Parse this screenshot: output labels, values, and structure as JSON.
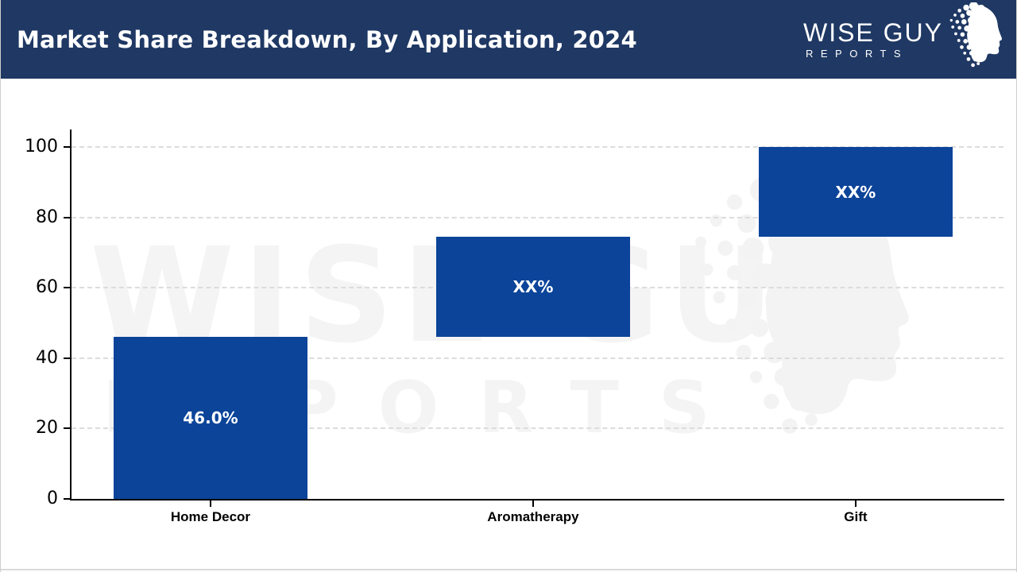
{
  "header": {
    "title": "Market Share Breakdown, By Application, 2024",
    "logo": {
      "wordmark": "WISE GUY",
      "subtext": "REPORTS"
    }
  },
  "watermark": {
    "line1": "WISE GUY",
    "line2": "REPORTS"
  },
  "chart_data": {
    "type": "bar",
    "subtype": "floating-waterfall",
    "title": "Market Share Breakdown, By Application, 2024",
    "categories": [
      "Home Decor",
      "Aromatherapy",
      "Gift"
    ],
    "segments": [
      {
        "category": "Home Decor",
        "start": 0,
        "end": 46,
        "label": "46.0%"
      },
      {
        "category": "Aromatherapy",
        "start": 46,
        "end": 74.5,
        "label": "XX%"
      },
      {
        "category": "Gift",
        "start": 74.5,
        "end": 100,
        "label": "XX%"
      }
    ],
    "yticks": [
      0,
      20,
      40,
      60,
      80,
      100
    ],
    "ylim": [
      0,
      105
    ],
    "xlabel": "",
    "ylabel": "",
    "grid": "horizontal-dashed",
    "legend_position": "none",
    "bar_color": "#0b4499",
    "bar_label_color": "#ffffff"
  },
  "colors": {
    "header_background": "#1f3864",
    "header_text": "#ffffff",
    "bar": "#0b4499",
    "grid_line": "#dcdcdc",
    "axis_line": "#000000",
    "tick_label": "#000000",
    "watermark": "#f4f4f4",
    "bottom_rule": "#dadada"
  }
}
